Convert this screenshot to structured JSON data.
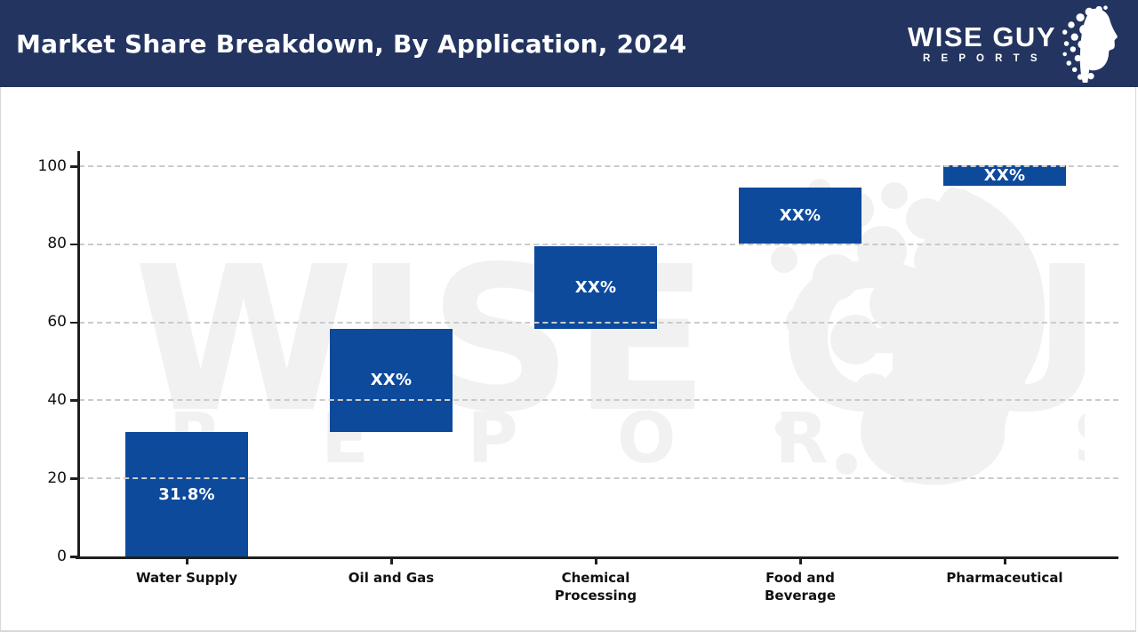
{
  "header": {
    "title": "Market Share Breakdown, By Application, 2024",
    "logo": {
      "line1": "WISE GUY",
      "line2": "R E P O R T S"
    }
  },
  "watermark": {
    "line1": "WISE GUY",
    "line2": "R E P O R T S"
  },
  "colors": {
    "header_bg": "#233460",
    "bar": "#0d4a9c",
    "bar_label_text": "#ffffff",
    "gridline": "#cbcbcb",
    "axis": "#1f1f1f",
    "watermark_tint": "#f1f1f4"
  },
  "chart_data": {
    "type": "bar",
    "subtype": "waterfall",
    "title": "Market Share Breakdown, By Application, 2024",
    "categories": [
      "Water Supply",
      "Oil and Gas",
      "Chemical Processing",
      "Food and Beverage",
      "Pharmaceutical"
    ],
    "segments": [
      [
        0,
        31.8
      ],
      [
        31.8,
        58.4
      ],
      [
        58.4,
        79.6
      ],
      [
        80.2,
        94.6
      ],
      [
        94.9,
        100.2
      ]
    ],
    "series": [
      {
        "name": "Market Share",
        "values": [
          31.8,
          26.6,
          21.2,
          14.4,
          5.3
        ]
      }
    ],
    "bar_labels": [
      "31.8%",
      "XX%",
      "XX%",
      "XX%",
      "XX%"
    ],
    "xlabel": "",
    "ylabel": "",
    "yticks": [
      0,
      20,
      40,
      60,
      80,
      100
    ],
    "ylim": [
      0,
      105
    ],
    "grid": "horizontal-dashed",
    "legend": "none"
  }
}
